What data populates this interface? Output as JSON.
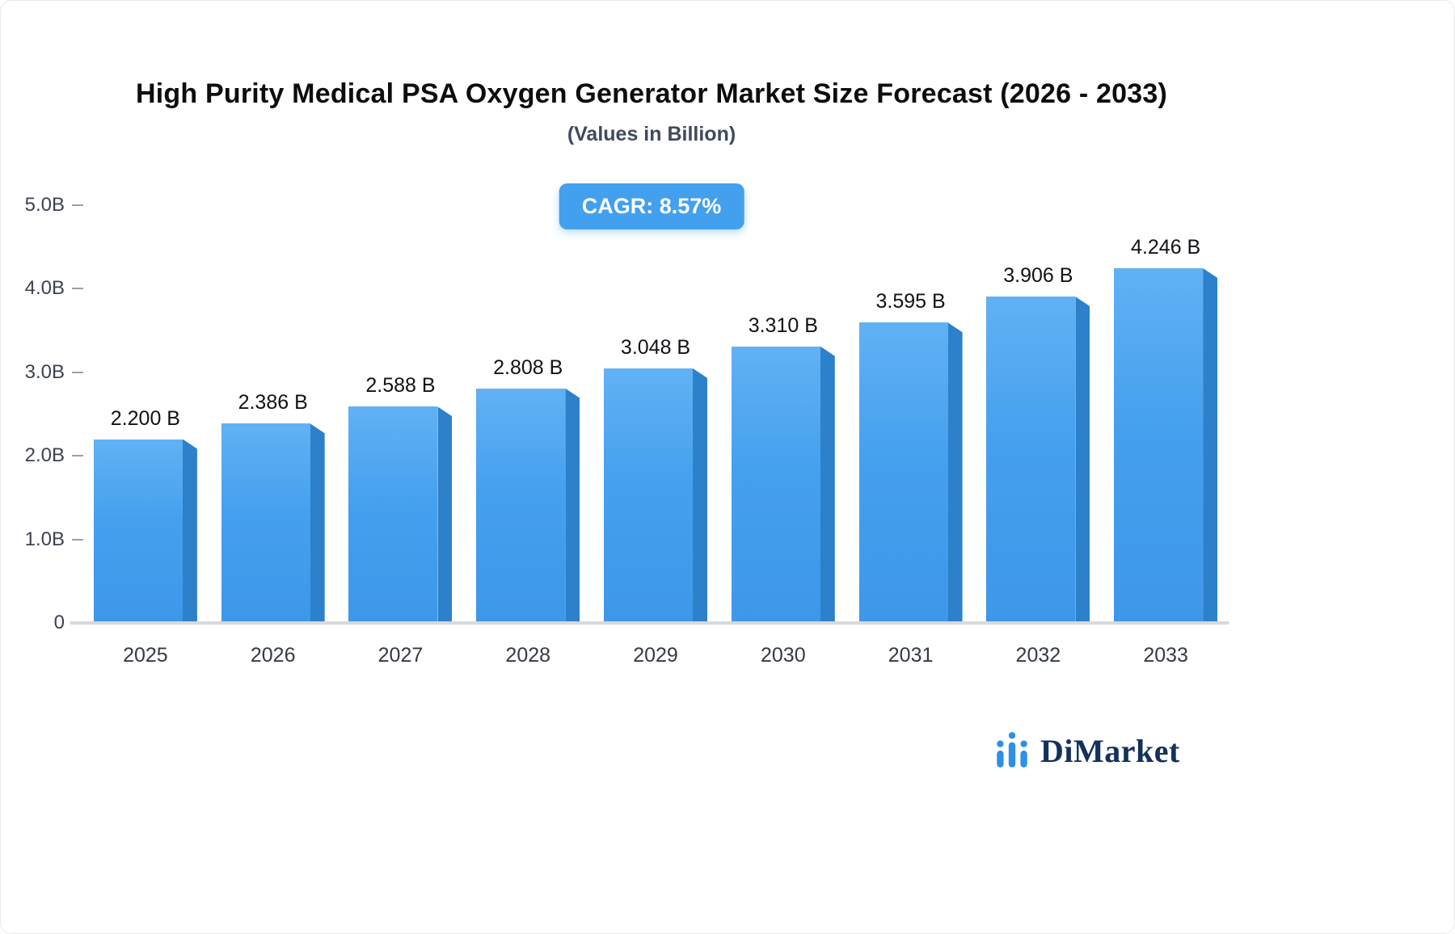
{
  "page": {
    "brand": "DiMarket"
  },
  "chart_data": {
    "type": "bar",
    "title": "High Purity Medical PSA Oxygen Generator Market Size Forecast (2026 - 2033)",
    "subtitle": "(Values in Billion)",
    "annotation": "CAGR: 8.57%",
    "categories": [
      "2025",
      "2026",
      "2027",
      "2028",
      "2029",
      "2030",
      "2031",
      "2032",
      "2033"
    ],
    "values": [
      2.2,
      2.386,
      2.588,
      2.808,
      3.048,
      3.31,
      3.595,
      3.906,
      4.246
    ],
    "value_labels": [
      "2.200 B",
      "2.386 B",
      "2.588 B",
      "2.808 B",
      "3.048 B",
      "3.310 B",
      "3.595 B",
      "3.906 B",
      "4.246 B"
    ],
    "xlabel": "",
    "ylabel": "",
    "ylim": [
      0,
      5.0
    ],
    "yticks": [
      "5.0B",
      "4.0B",
      "3.0B",
      "2.0B",
      "1.0B",
      "0"
    ],
    "ytick_values": [
      5.0,
      4.0,
      3.0,
      2.0,
      1.0,
      0
    ],
    "grid": false,
    "legend": false,
    "colors": {
      "bar_front_top": "#61b1f4",
      "bar_front_bottom": "#3e97ea",
      "bar_side": "#2d80ca",
      "badge_background": "#42a0ee",
      "badge_text": "#ffffff",
      "brand_navy": "#14305c",
      "brand_blue": "#2e8fe8",
      "baseline": "#d8d9db"
    }
  }
}
